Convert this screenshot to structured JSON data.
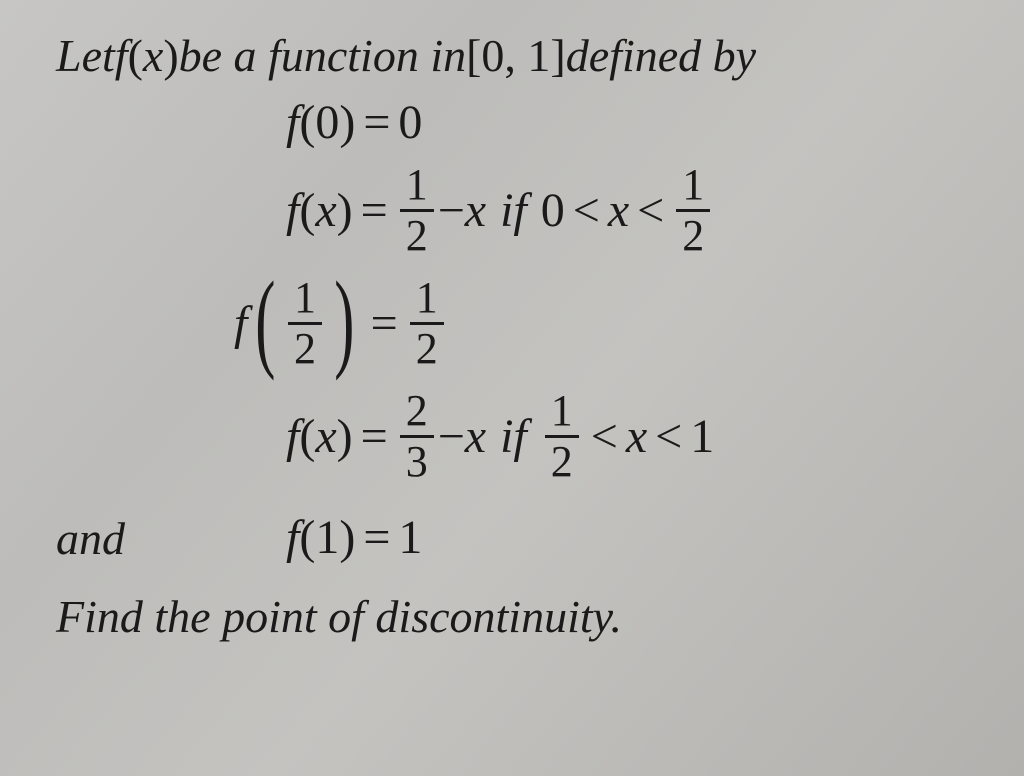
{
  "colors": {
    "text": "#1a1a1a",
    "background_gradient_start": "#c7c6c4",
    "background_gradient_end": "#b2b1ae",
    "fraction_bar": "#1a1a1a"
  },
  "typography": {
    "family": "Georgia / Times New Roman (serif, italic for prose)",
    "intro_fontsize_pt": 34,
    "equation_fontsize_pt": 36,
    "fraction_fontsize_pt": 33
  },
  "text": {
    "intro_prefix": "Let ",
    "intro_fn": "f",
    "intro_paren_open": "(",
    "intro_var": "x",
    "intro_paren_close": ")",
    "intro_mid": " be a function in ",
    "intro_interval": "[0, 1] ",
    "intro_suffix": "defined by",
    "and": "and",
    "find": "Find the point of discontinuity."
  },
  "equations": {
    "e1": {
      "lhs_fn": "f",
      "lhs_arg": "0",
      "eq": "=",
      "rhs": "0"
    },
    "e2": {
      "lhs_fn": "f",
      "lhs_arg": "x",
      "eq": "=",
      "frac_num": "1",
      "frac_den": "2",
      "minus": "−",
      "var": "x",
      "if": "if",
      "cond_left": "0",
      "lt1": "<",
      "cond_var": "x",
      "lt2": "<",
      "cond_frac_num": "1",
      "cond_frac_den": "2"
    },
    "e3": {
      "lhs_fn": "f",
      "arg_frac_num": "1",
      "arg_frac_den": "2",
      "eq": "=",
      "rhs_frac_num": "1",
      "rhs_frac_den": "2"
    },
    "e4": {
      "lhs_fn": "f",
      "lhs_arg": "x",
      "eq": "=",
      "frac_num": "2",
      "frac_den": "3",
      "minus": "−",
      "var": "x",
      "if": "if",
      "cond_frac_num": "1",
      "cond_frac_den": "2",
      "lt1": "<",
      "cond_var": "x",
      "lt2": "<",
      "cond_right": "1"
    },
    "e5": {
      "lhs_fn": "f",
      "lhs_arg": "1",
      "eq": "=",
      "rhs": "1"
    }
  }
}
